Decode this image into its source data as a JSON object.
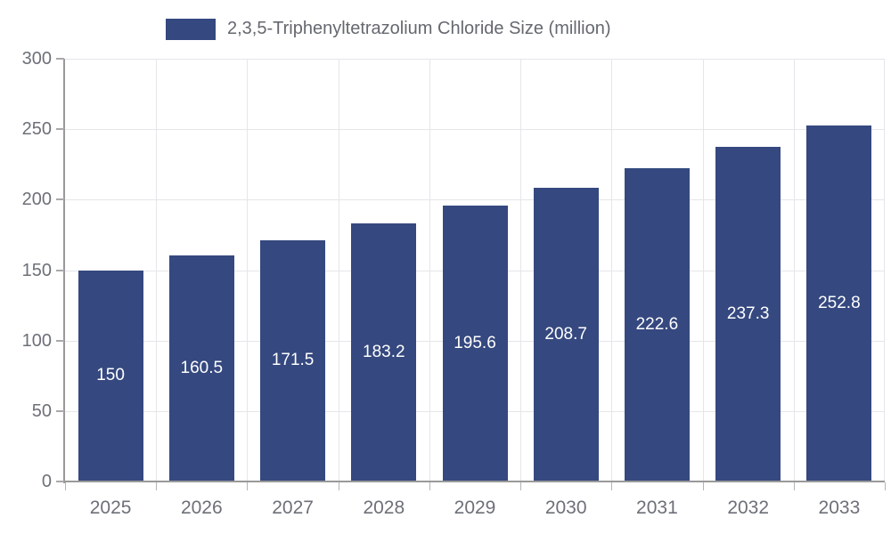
{
  "legend": {
    "label": "2,3,5-Triphenyltetrazolium Chloride Size (million)"
  },
  "chart_data": {
    "type": "bar",
    "title": "",
    "categories": [
      "2025",
      "2026",
      "2027",
      "2028",
      "2029",
      "2030",
      "2031",
      "2032",
      "2033"
    ],
    "values": [
      150,
      160.5,
      171.5,
      183.2,
      195.6,
      208.7,
      222.6,
      237.3,
      252.8
    ],
    "series": [
      {
        "name": "2,3,5-Triphenyltetrazolium Chloride Size (million)",
        "values": [
          150,
          160.5,
          171.5,
          183.2,
          195.6,
          208.7,
          222.6,
          237.3,
          252.8
        ]
      }
    ],
    "xlabel": "",
    "ylabel": "",
    "ylim": [
      0,
      300
    ],
    "yticks": [
      0,
      50,
      100,
      150,
      200,
      250,
      300
    ],
    "grid": true,
    "legend_position": "top",
    "value_labels": "inside-center-white",
    "colors": {
      "bar": "#35487f",
      "bar_value_text": "#ffffff",
      "axis_line": "#999999",
      "gridline": "#e6e6ea",
      "plot_border": "#e4e6ec",
      "axis_label_text": "#6d7078",
      "legend_text": "#65686f",
      "background": "#ffffff"
    }
  }
}
